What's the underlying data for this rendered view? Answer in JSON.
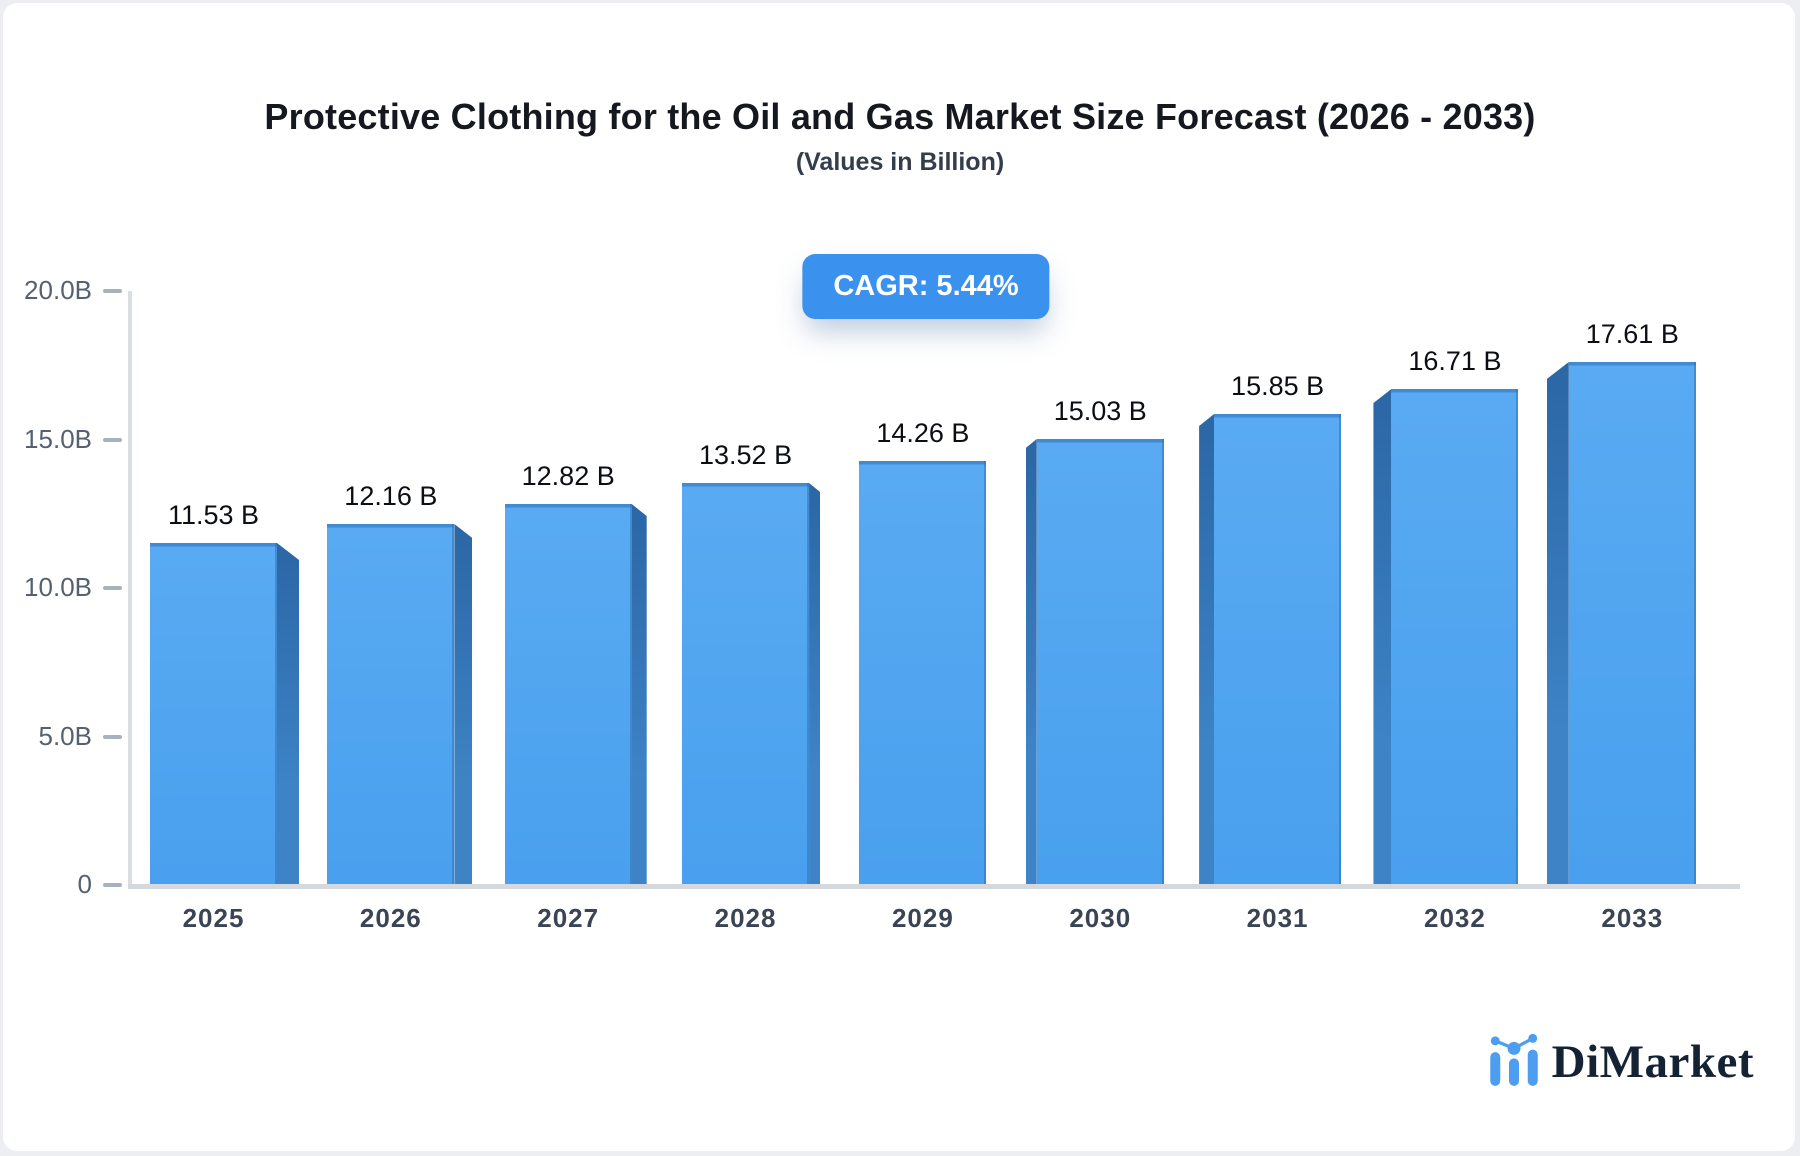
{
  "page": {
    "background": "#eceef1",
    "card_background": "#ffffff"
  },
  "header": {
    "title": "Protective Clothing for the Oil and Gas Market Size Forecast (2026 - 2033)",
    "subtitle": "(Values in Billion)"
  },
  "badge": {
    "label": "CAGR: 5.44%",
    "background": "#3b92ee",
    "text_color": "#ffffff"
  },
  "chart_data": {
    "type": "bar",
    "title": "Protective Clothing for the Oil and Gas Market Size Forecast (2026 - 2033)",
    "subtitle": "(Values in Billion)",
    "annotation": "CAGR: 5.44%",
    "categories": [
      "2025",
      "2026",
      "2027",
      "2028",
      "2029",
      "2030",
      "2031",
      "2032",
      "2033"
    ],
    "values": [
      11.53,
      12.16,
      12.82,
      13.52,
      14.26,
      15.03,
      15.85,
      16.71,
      17.61
    ],
    "value_labels": [
      "11.53 B",
      "12.16 B",
      "12.82 B",
      "13.52 B",
      "14.26 B",
      "15.03 B",
      "15.85 B",
      "16.71 B",
      "17.61 B"
    ],
    "xlabel": "",
    "ylabel": "",
    "ylim": [
      0,
      20
    ],
    "yticks": [
      {
        "value": 0,
        "label": "0"
      },
      {
        "value": 5,
        "label": "5.0B"
      },
      {
        "value": 10,
        "label": "10.0B"
      },
      {
        "value": 15,
        "label": "15.0B"
      },
      {
        "value": 20,
        "label": "20.0B"
      }
    ],
    "grid": false,
    "legend_position": "none",
    "style": "3d-extruded-bars, vanishing point at chart center",
    "colors": {
      "bar_front_top": "#59aaf2",
      "bar_front_bottom": "#49a0ee",
      "bar_front_edge": "#3f8bd4",
      "bar_side_top": "#2b66a5",
      "bar_side_bottom": "#3d83c6",
      "axis_line": "#dadde2",
      "baseline": "#d5d8dd",
      "tick_dash": "#a9b1bb",
      "y_tick_text": "#57606f",
      "x_tick_text": "#3a4454",
      "value_label_text": "#0b0e13"
    }
  },
  "branding": {
    "name": "DiMarket",
    "icon": "bar-chart-logo-icon",
    "icon_color": "#4d9df0",
    "text_color": "#152233"
  }
}
